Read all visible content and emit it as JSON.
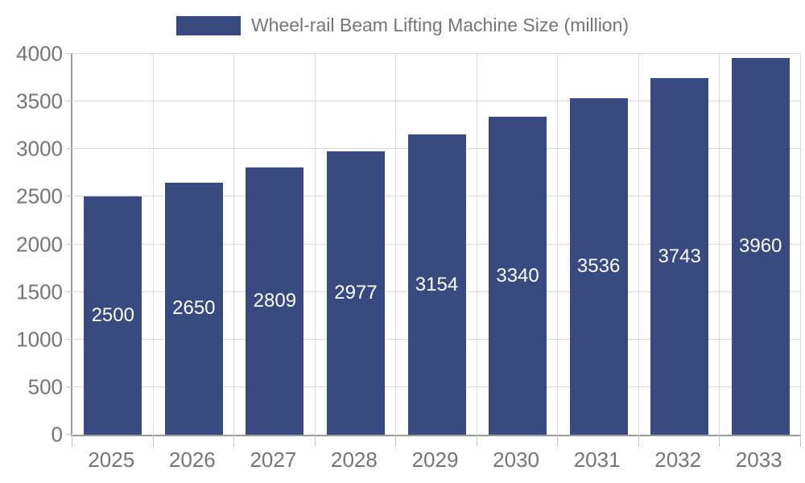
{
  "legend": {
    "label": "Wheel-rail Beam Lifting Machine Size (million)",
    "swatch_color": "#384a80"
  },
  "chart_data": {
    "type": "bar",
    "title": "",
    "xlabel": "",
    "ylabel": "",
    "categories": [
      "2025",
      "2026",
      "2027",
      "2028",
      "2029",
      "2030",
      "2031",
      "2032",
      "2033"
    ],
    "series": [
      {
        "name": "Wheel-rail Beam Lifting Machine Size (million)",
        "values": [
          2500,
          2650,
          2809,
          2977,
          3154,
          3340,
          3536,
          3743,
          3960
        ]
      }
    ],
    "ylim": [
      0,
      4000
    ],
    "ytick_step": 500,
    "ytick_labels": [
      "0",
      "500",
      "1000",
      "1500",
      "2000",
      "2500",
      "3000",
      "3500",
      "4000"
    ],
    "grid": true,
    "legend_position": "top",
    "bar_color": "#384a80",
    "bar_value_label_color": "#ffffff",
    "axis_text_color": "#757575",
    "gridline_color": "#dbdbdb",
    "axis_line_color": "#9a9a9a"
  }
}
